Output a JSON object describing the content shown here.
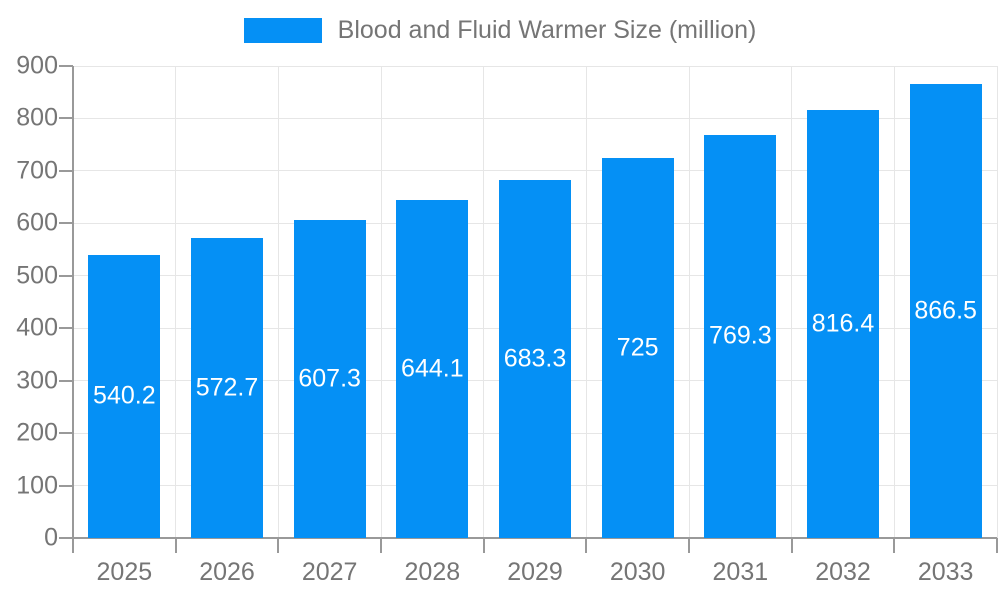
{
  "legend": {
    "label": "Blood and Fluid Warmer Size (million)"
  },
  "colors": {
    "bar": "#0590f5",
    "grid": "#e6e6e6",
    "axis": "#999999",
    "tick_text": "#757575",
    "bar_label_text": "#ffffff",
    "background": "#ffffff"
  },
  "chart_data": {
    "type": "bar",
    "title": "",
    "series_name": "Blood and Fluid Warmer Size (million)",
    "categories": [
      "2025",
      "2026",
      "2027",
      "2028",
      "2029",
      "2030",
      "2031",
      "2032",
      "2033"
    ],
    "values": [
      540.2,
      572.7,
      607.3,
      644.1,
      683.3,
      725,
      769.3,
      816.4,
      866.5
    ],
    "value_labels": [
      "540.2",
      "572.7",
      "607.3",
      "644.1",
      "683.3",
      "725",
      "769.3",
      "816.4",
      "866.5"
    ],
    "xlabel": "",
    "ylabel": "",
    "ylim": [
      0,
      900
    ],
    "ytick_step": 100,
    "yticks": [
      0,
      100,
      200,
      300,
      400,
      500,
      600,
      700,
      800,
      900
    ],
    "grid": true,
    "vertical_category_gridlines": true,
    "legend_position": "top"
  }
}
